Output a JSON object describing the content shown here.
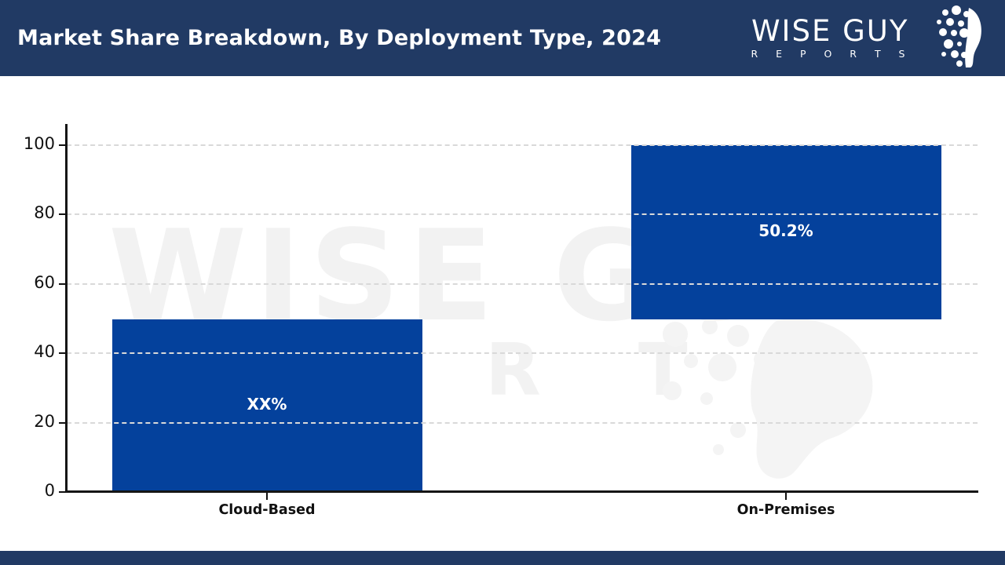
{
  "header": {
    "title": "Market Share Breakdown, By Deployment Type, 2024"
  },
  "logo": {
    "line1": "WISE GUY",
    "line2": "R E P O R T S"
  },
  "watermark": {
    "line1": "WISE GUY",
    "line2": "R T S"
  },
  "colors": {
    "header_bar": "#213a64",
    "footer_bar": "#213a64",
    "bar_fill": "#04419c",
    "bar_label_text": "#ffffff",
    "axis": "#151515",
    "gridline": "#d9d9d9",
    "tick_text": "#111111",
    "watermark": "#f2f2f2"
  },
  "chart_data": {
    "type": "bar",
    "title": "Market Share Breakdown, By Deployment Type, 2024",
    "categories": [
      "Cloud-Based",
      "On-Premises"
    ],
    "bars": [
      {
        "category": "Cloud-Based",
        "from": 0,
        "to": 49.8,
        "label": "XX%"
      },
      {
        "category": "On-Premises",
        "from": 49.8,
        "to": 100,
        "label": "50.2%"
      }
    ],
    "xlabel": "",
    "ylabel": "",
    "ylim": [
      0,
      105
    ],
    "yticks": [
      0,
      20,
      40,
      60,
      80,
      100
    ],
    "grid": "horizontal-dashed-over-bars",
    "legend": "none"
  }
}
